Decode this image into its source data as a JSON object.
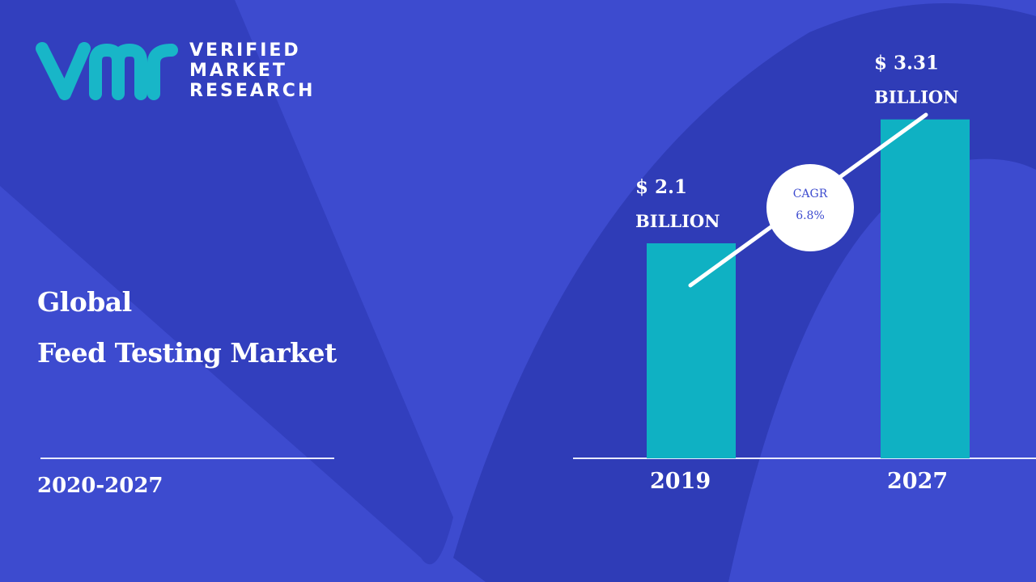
{
  "logo": {
    "mark": "vmr",
    "lines": [
      "VERIFIED",
      "MARKET",
      "RESEARCH"
    ]
  },
  "title": {
    "line1": "Global",
    "line2": "Feed Testing Market"
  },
  "period": "2020-2027",
  "colors": {
    "background": "#3d4bcf",
    "bar": "#0fb1c3",
    "logo_mark": "#18b6c8"
  },
  "cagr": {
    "label": "CAGR",
    "value": "6.8%"
  },
  "chart_data": {
    "type": "bar",
    "categories": [
      "2019",
      "2027"
    ],
    "values": [
      2.1,
      3.31
    ],
    "value_labels": [
      {
        "amount": "$ 2.1",
        "unit": "BILLION"
      },
      {
        "amount": "$ 3.31",
        "unit": "BILLION"
      }
    ],
    "title": "",
    "xlabel": "",
    "ylabel": "",
    "grid": false
  }
}
